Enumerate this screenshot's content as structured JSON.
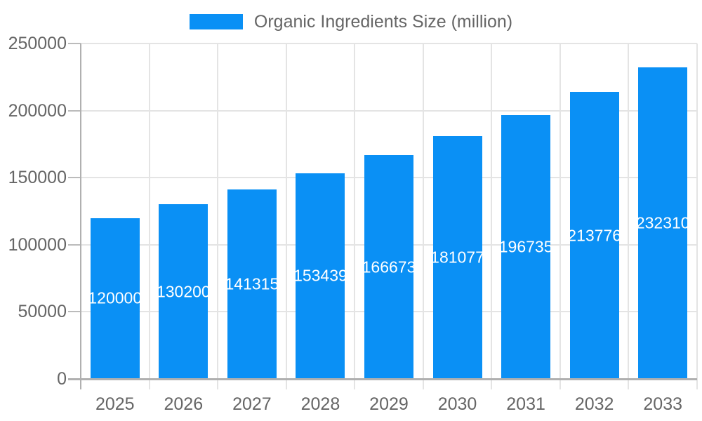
{
  "legend": {
    "label": "Organic Ingredients Size (million)"
  },
  "chart_data": {
    "type": "bar",
    "title": "Organic Ingredients Size (million)",
    "categories": [
      "2025",
      "2026",
      "2027",
      "2028",
      "2029",
      "2030",
      "2031",
      "2032",
      "2033"
    ],
    "values": [
      120000,
      130200,
      141315,
      153439,
      166673,
      181077,
      196735,
      213776,
      232310
    ],
    "value_labels": [
      "120000",
      "130200",
      "141315",
      "153439",
      "166673",
      "181077",
      "196735",
      "213776",
      "232310"
    ],
    "xlabel": "",
    "ylabel": "",
    "ylim": [
      0,
      250000
    ],
    "yticks": [
      0,
      50000,
      100000,
      150000,
      200000,
      250000
    ],
    "ytick_labels": [
      "0",
      "50000",
      "100000",
      "150000",
      "200000",
      "250000"
    ],
    "grid": true,
    "legend_position": "top",
    "colors": {
      "bar": "#0a90f5",
      "axis_text": "#666666",
      "annotation_text": "#ffffff",
      "gridline": "#e4e4e4",
      "axis_line": "#b0b0b0",
      "tick": "#bbbbbb",
      "background": "#ffffff"
    }
  }
}
